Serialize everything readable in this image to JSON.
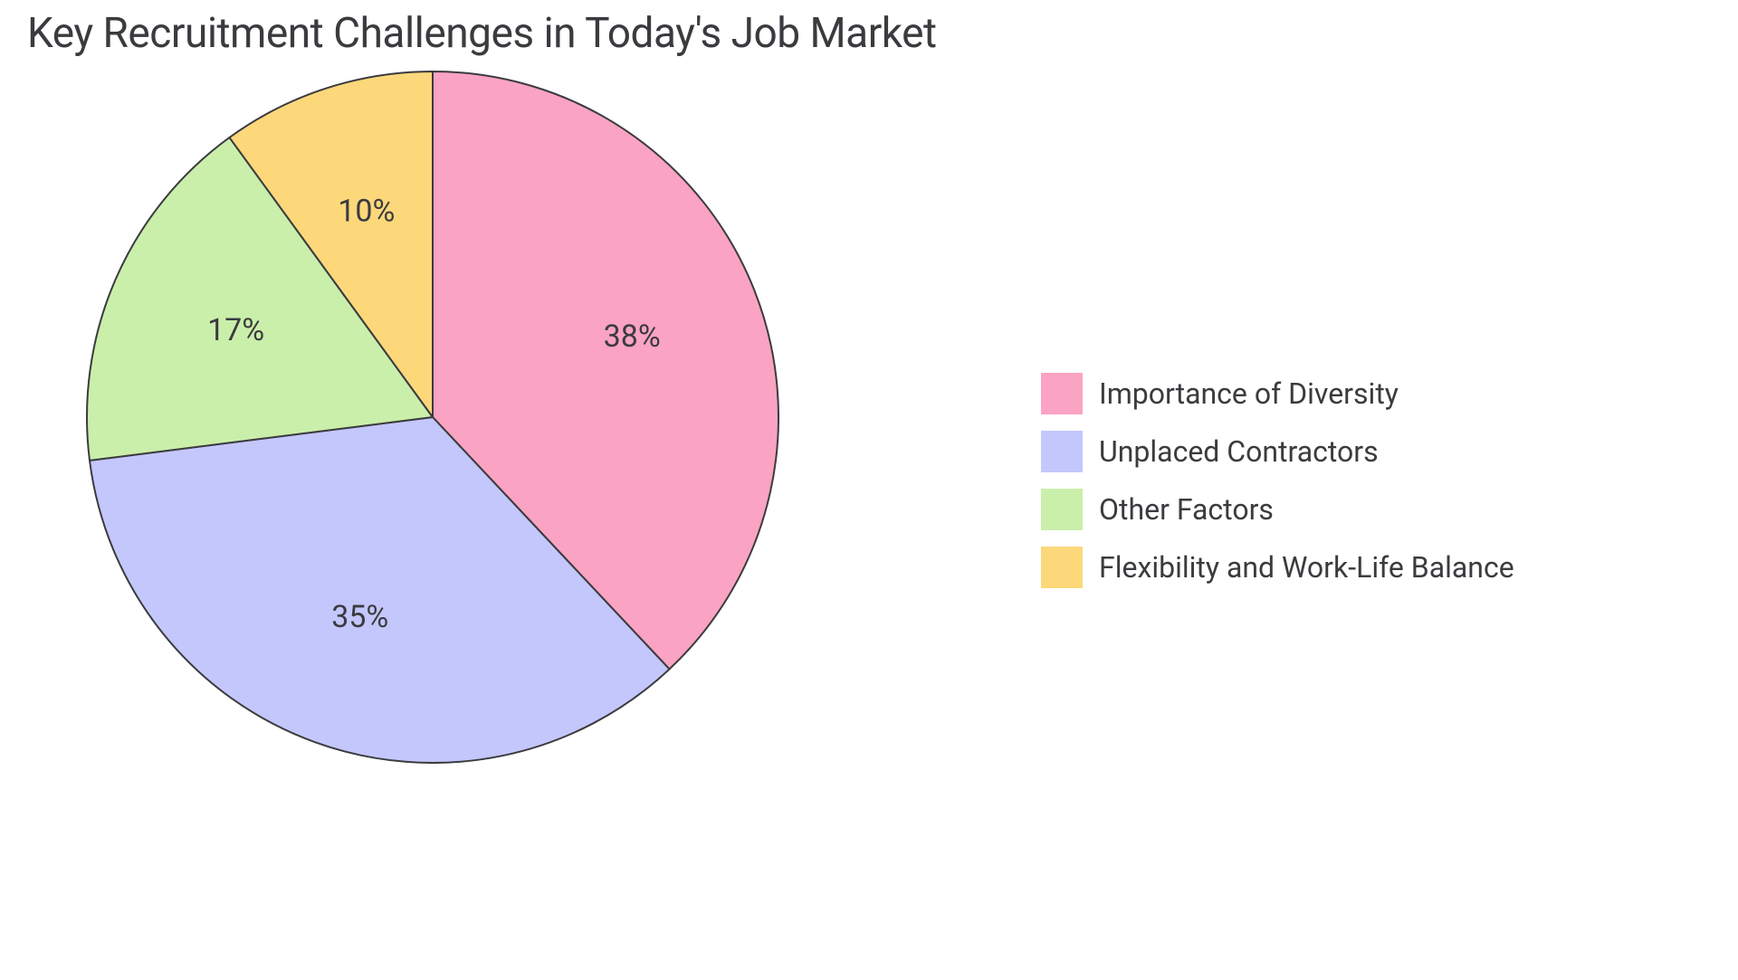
{
  "title": "Key Recruitment Challenges in Today's Job Market",
  "chart": {
    "type": "pie",
    "background_color": "#ffffff",
    "stroke_color": "#3b3b3f",
    "stroke_width": 2,
    "title_fontsize": 46,
    "title_color": "#3b3b3f",
    "label_fontsize": 34,
    "label_color": "#3b3b3f",
    "legend_fontsize": 32,
    "legend_swatch_size": 46,
    "radius": 383,
    "label_radius_factor": 0.62,
    "slices": [
      {
        "label": "Importance of Diversity",
        "value": 38,
        "display": "38%",
        "color": "#fba3c2"
      },
      {
        "label": "Unplaced Contractors",
        "value": 35,
        "display": "35%",
        "color": "#c4c7fb"
      },
      {
        "label": "Other Factors",
        "value": 17,
        "display": "17%",
        "color": "#caefaa"
      },
      {
        "label": "Flexibility and Work-Life Balance",
        "value": 10,
        "display": "10%",
        "color": "#fcd87b"
      }
    ]
  }
}
